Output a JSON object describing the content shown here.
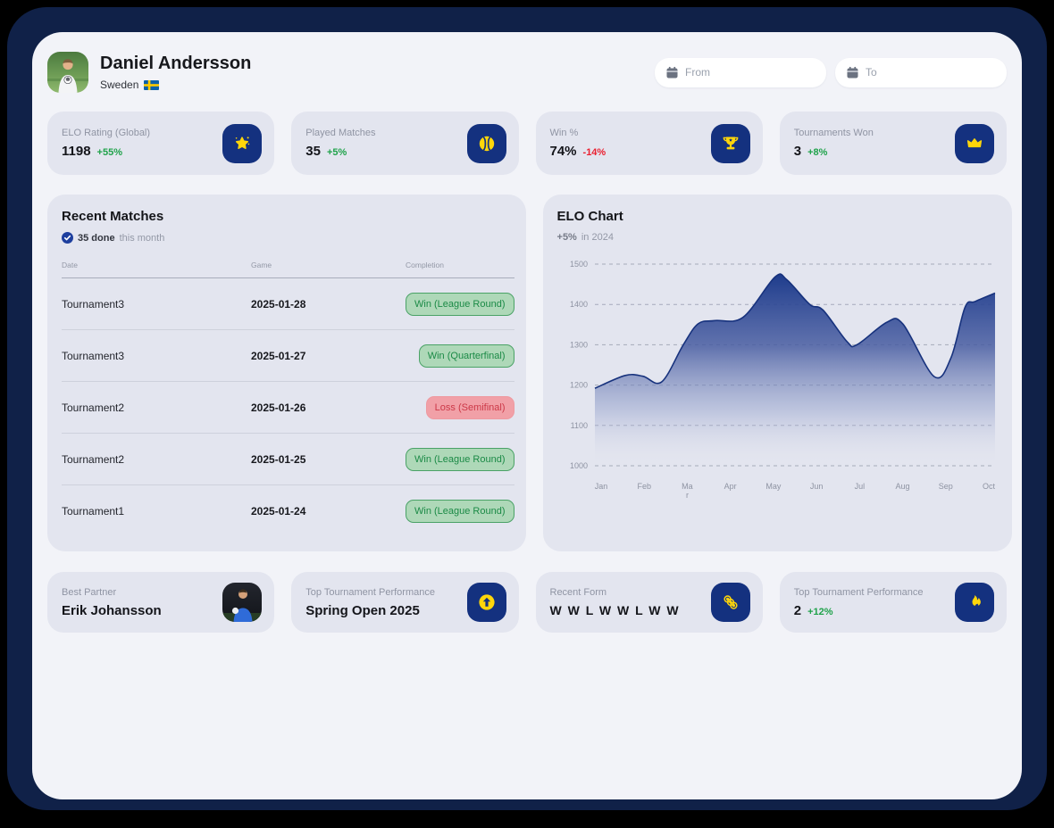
{
  "header": {
    "name": "Daniel Andersson",
    "country": "Sweden",
    "filters": {
      "from_placeholder": "From",
      "to_placeholder": "To"
    }
  },
  "stats": [
    {
      "label": "ELO Rating (Global)",
      "value": "1198",
      "delta": "+55%",
      "delta_tone": "green",
      "icon": "star-icon"
    },
    {
      "label": "Played Matches",
      "value": "35",
      "delta": "+5%",
      "delta_tone": "green",
      "icon": "tennis-ball-icon"
    },
    {
      "label": "Win %",
      "value": "74%",
      "delta": "-14%",
      "delta_tone": "red",
      "icon": "trophy-icon"
    },
    {
      "label": "Tournaments Won",
      "value": "3",
      "delta": "+8%",
      "delta_tone": "green",
      "icon": "crown-icon"
    }
  ],
  "recent_matches": {
    "title": "Recent Matches",
    "subtitle_strong": "35 done",
    "subtitle_rest": "this month",
    "columns": {
      "c1": "Date",
      "c2": "Game",
      "c3": "Completion"
    },
    "rows": [
      {
        "name": "Tournament3",
        "date": "2025-01-28",
        "result": "Win (League Round)",
        "status": "win"
      },
      {
        "name": "Tournament3",
        "date": "2025-01-27",
        "result": "Win (Quarterfinal)",
        "status": "win"
      },
      {
        "name": "Tournament2",
        "date": "2025-01-26",
        "result": "Loss (Semifinal)",
        "status": "loss"
      },
      {
        "name": "Tournament2",
        "date": "2025-01-25",
        "result": "Win (League Round)",
        "status": "win"
      },
      {
        "name": "Tournament1",
        "date": "2025-01-24",
        "result": "Win (League Round)",
        "status": "win"
      }
    ]
  },
  "chart_data": {
    "type": "area",
    "title": "ELO Chart",
    "subtitle_delta": "+5%",
    "subtitle_period": "in 2024",
    "x_labels": [
      "Jan",
      "Feb",
      "Ma\nr",
      "Apr",
      "May",
      "Jun",
      "Jul",
      "Aug",
      "Sep",
      "Oct"
    ],
    "y_ticks": [
      1000,
      1100,
      1200,
      1300,
      1400,
      1500
    ],
    "ylim": [
      1000,
      1500
    ],
    "grid": "dashed",
    "legend": "none",
    "values_at_months": [
      1195,
      1220,
      1300,
      1365,
      1465,
      1390,
      1300,
      1350,
      1230,
      1425
    ],
    "series": [
      {
        "name": "ELO",
        "points": [
          [
            0.0,
            1192
          ],
          [
            0.076,
            1224
          ],
          [
            0.12,
            1222
          ],
          [
            0.167,
            1208
          ],
          [
            0.221,
            1300
          ],
          [
            0.258,
            1352
          ],
          [
            0.3,
            1360
          ],
          [
            0.37,
            1368
          ],
          [
            0.45,
            1468
          ],
          [
            0.48,
            1461
          ],
          [
            0.537,
            1400
          ],
          [
            0.57,
            1386
          ],
          [
            0.63,
            1308
          ],
          [
            0.655,
            1300
          ],
          [
            0.73,
            1356
          ],
          [
            0.77,
            1351
          ],
          [
            0.848,
            1221
          ],
          [
            0.89,
            1268
          ],
          [
            0.925,
            1393
          ],
          [
            0.95,
            1407
          ],
          [
            1.0,
            1428
          ]
        ]
      }
    ]
  },
  "bottom_cards": [
    {
      "label": "Best Partner",
      "value": "Erik Johansson",
      "icon": "partner-photo"
    },
    {
      "label": "Top Tournament Performance",
      "value": "Spring Open 2025",
      "icon": "arrow-up-circle-icon"
    },
    {
      "label": "Recent Form",
      "value": "W W L W W L W W",
      "icon": "medal-chain-icon"
    },
    {
      "label": "Top Tournament Performance",
      "value": "2",
      "delta": "+12%",
      "delta_tone": "green",
      "icon": "flame-icon"
    }
  ],
  "colors": {
    "frame_navy": "#102148",
    "panel_bg": "#f2f3f8",
    "card_bg": "#e3e5ef",
    "icon_tile_navy": "#14317f",
    "icon_yellow": "#ffd60a",
    "delta_green": "#1fa24a",
    "delta_red": "#ea1f2f",
    "badge_win_bg": "#aed8b8",
    "badge_win_text": "#1b8a46",
    "badge_loss_bg": "#f1a0a7",
    "badge_loss_text": "#cc3847",
    "chart_fill_top": "#1e3c8c",
    "chart_stroke": "#17327d"
  }
}
